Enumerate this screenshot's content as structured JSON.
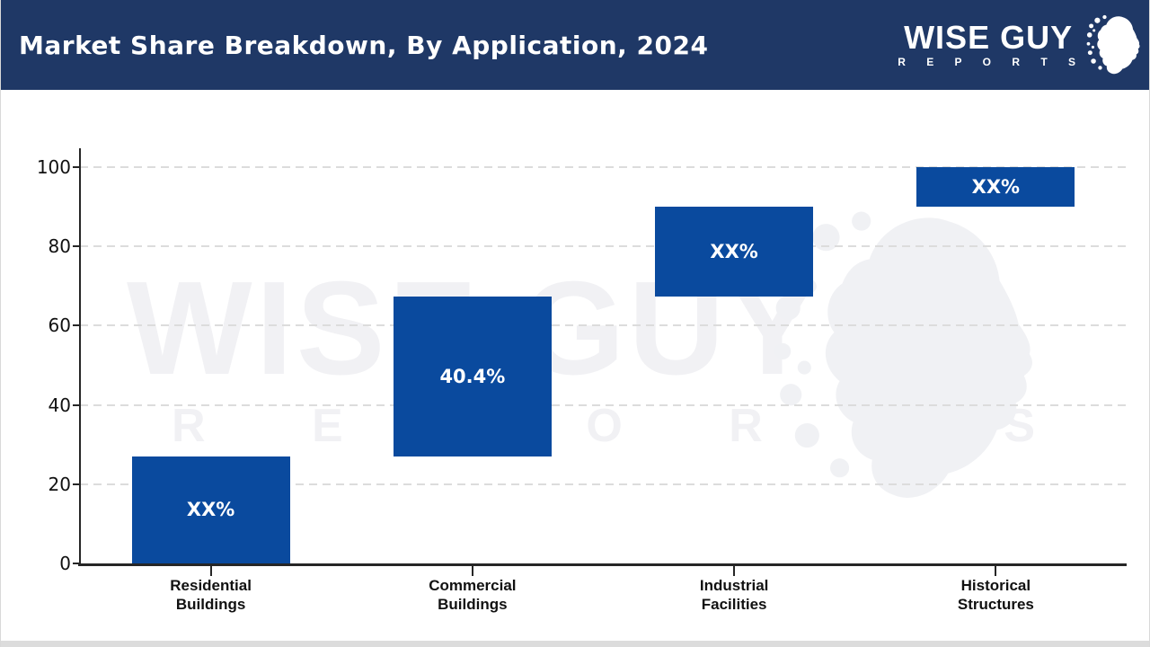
{
  "header": {
    "title": "Market Share Breakdown, By Application, 2024",
    "logo": {
      "brand_line1": "WISE GUY",
      "brand_line2": "R E P O R T S"
    }
  },
  "watermark": {
    "line1": "WISE GUY",
    "line2": "R E P O R T S"
  },
  "chart_data": {
    "type": "bar",
    "subtype": "waterfall",
    "title": "Market Share Breakdown, By Application, 2024",
    "categories": [
      "Residential Buildings",
      "Commercial Buildings",
      "Industrial Facilities",
      "Historical Structures"
    ],
    "category_lines": [
      [
        "Residential",
        "Buildings"
      ],
      [
        "Commercial",
        "Buildings"
      ],
      [
        "Industrial",
        "Facilities"
      ],
      [
        "Historical",
        "Structures"
      ]
    ],
    "segments": [
      {
        "category": "Residential Buildings",
        "start": 0,
        "end": 27,
        "label": "XX%"
      },
      {
        "category": "Commercial Buildings",
        "start": 27,
        "end": 67.4,
        "label": "40.4%"
      },
      {
        "category": "Industrial Facilities",
        "start": 67.4,
        "end": 90,
        "label": "XX%"
      },
      {
        "category": "Historical Structures",
        "start": 90,
        "end": 100,
        "label": "XX%"
      }
    ],
    "xlabel": "",
    "ylabel": "",
    "ylim": [
      0,
      100
    ],
    "yticks": [
      0,
      20,
      40,
      60,
      80,
      100
    ],
    "grid": true,
    "gridline_style": "dashed",
    "legend": false,
    "bar_color": "#0a4a9e",
    "bar_label_color": "#ffffff"
  },
  "colors": {
    "header_bg": "#1f3866",
    "bar": "#0a4a9e",
    "axis": "#262626",
    "gridline": "#dcdcdc",
    "watermark": "#f1f1f4",
    "footer_strip": "#dcdcdc"
  }
}
